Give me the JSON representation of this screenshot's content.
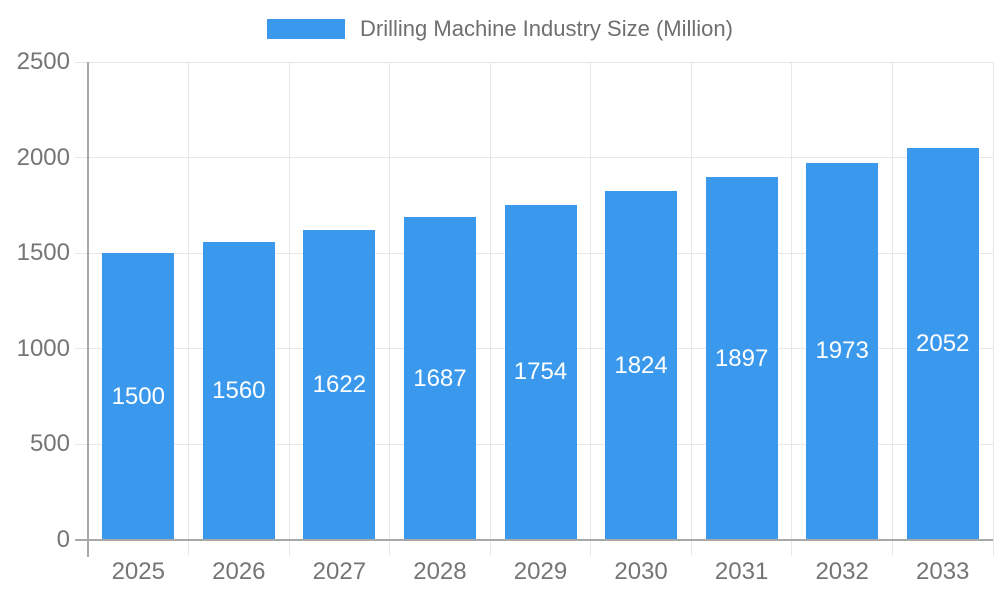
{
  "chart_data": {
    "type": "bar",
    "title": "Drilling Machine Industry Size (Million)",
    "legend": {
      "label": "Drilling Machine Industry Size (Million)",
      "position": "top"
    },
    "categories": [
      "2025",
      "2026",
      "2027",
      "2028",
      "2029",
      "2030",
      "2031",
      "2032",
      "2033"
    ],
    "values": [
      1500,
      1560,
      1622,
      1687,
      1754,
      1824,
      1897,
      1973,
      2052
    ],
    "value_labels_shown_inside_bars": true,
    "xlabel": "",
    "ylabel": "",
    "ylim": [
      0,
      2500
    ],
    "yticks": [
      0,
      500,
      1000,
      1500,
      2000,
      2500
    ],
    "grid": true,
    "colors": {
      "bar": "#3B99ED",
      "grid": "#e6e6e6",
      "axis": "#a8a8a8",
      "tick_text": "#757575",
      "legend_text": "#6f6f6f",
      "value_label": "#ffffff",
      "background": "#ffffff"
    }
  }
}
